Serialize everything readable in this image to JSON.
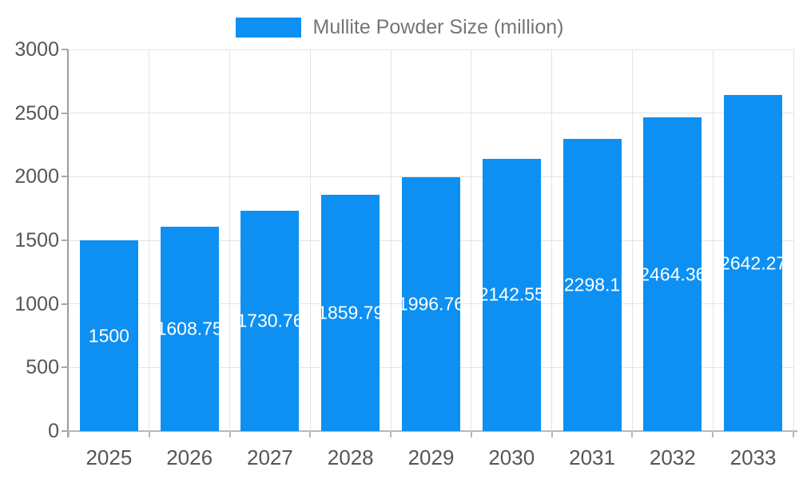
{
  "legend": {
    "label": "Mullite Powder Size (million)"
  },
  "chart_data": {
    "type": "bar",
    "title": "",
    "legend_entries": [
      "Mullite Powder Size (million)"
    ],
    "legend_position": "top-center",
    "categories": [
      "2025",
      "2026",
      "2027",
      "2028",
      "2029",
      "2030",
      "2031",
      "2032",
      "2033"
    ],
    "series": [
      {
        "name": "Mullite Powder Size (million)",
        "values": [
          1500,
          1608.75,
          1730.76,
          1859.79,
          1996.76,
          2142.55,
          2298.1,
          2464.36,
          2642.27
        ],
        "bar_labels": [
          "1500",
          "1608.75",
          "1730.76",
          "1859.79",
          "1996.76",
          "2142.55",
          "2298.1",
          "2464.36",
          "2642.27"
        ]
      }
    ],
    "xlabel": "",
    "ylabel": "",
    "ylim": [
      0,
      3000
    ],
    "ytick_step": 500,
    "yticks": [
      "0",
      "500",
      "1000",
      "1500",
      "2000",
      "2500",
      "3000"
    ],
    "grid": true,
    "colors": {
      "bar": "#0e90f2",
      "bar_label_text": "#ffffff",
      "legend_text": "#757575",
      "axis_label_text": "#565656",
      "gridline": "#e4e4e4",
      "axis_line": "#9c9c9c"
    }
  }
}
